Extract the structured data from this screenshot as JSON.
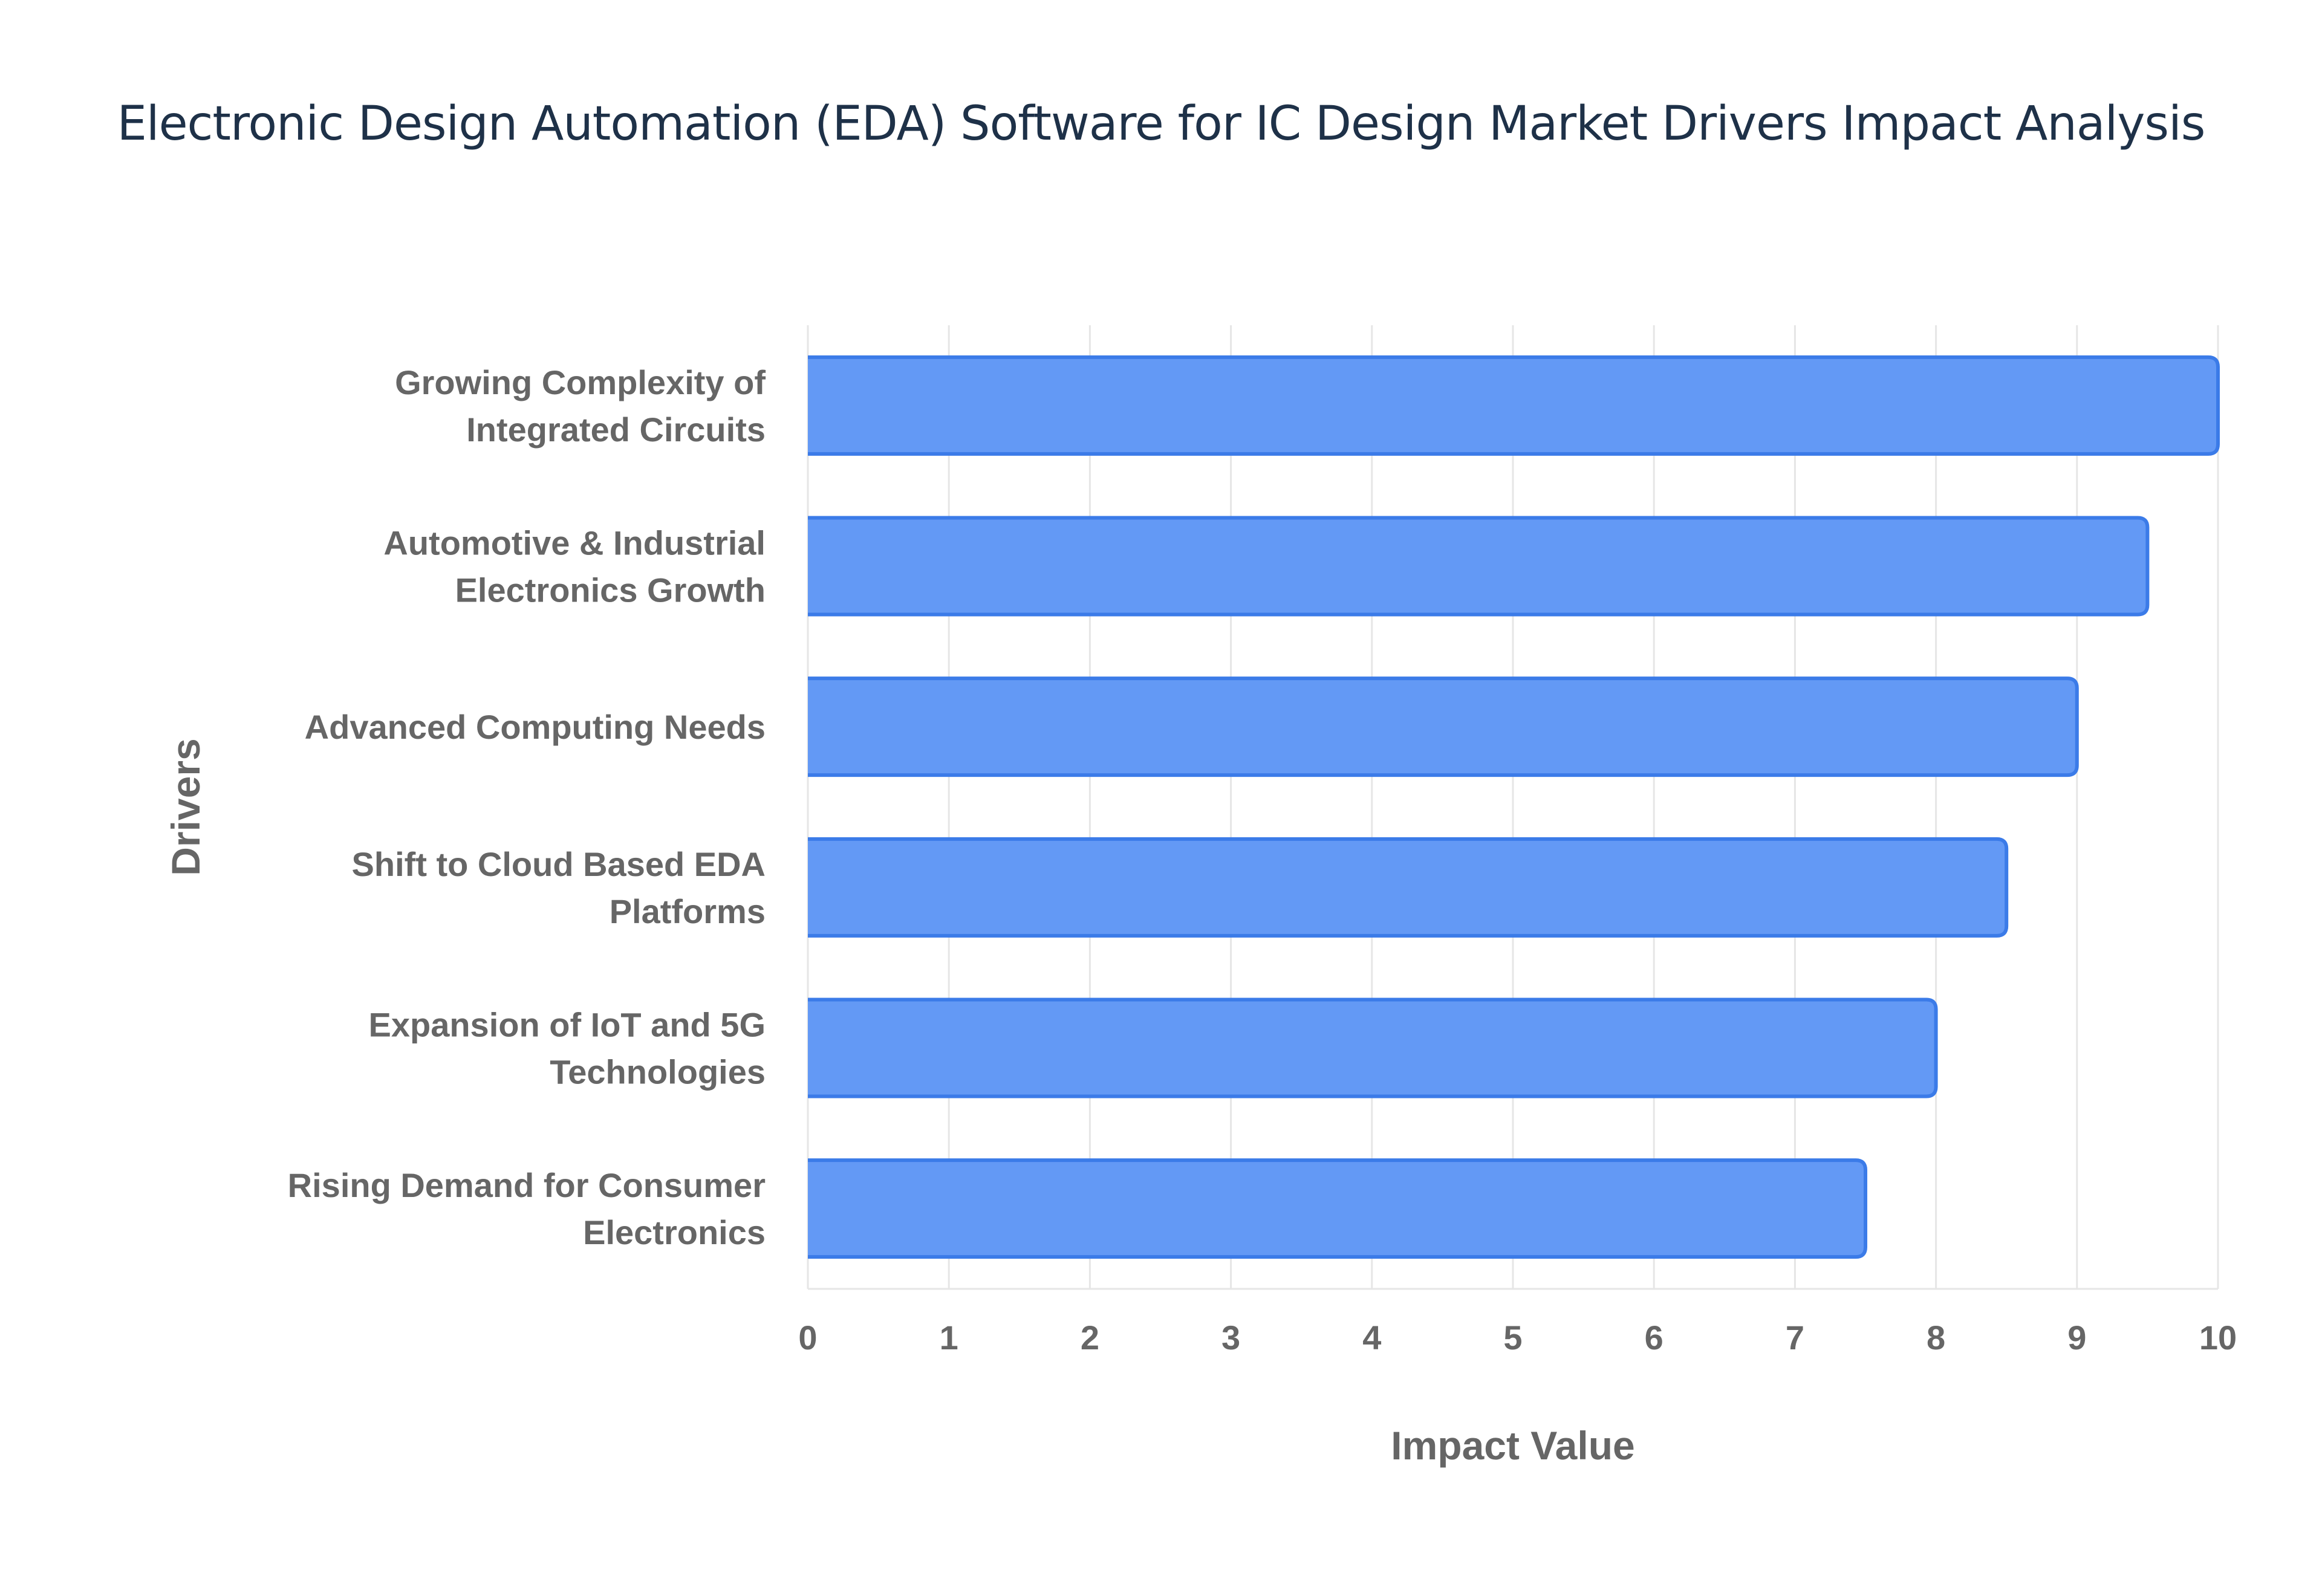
{
  "title": "Electronic Design Automation (EDA) Software for IC Design Market Drivers Impact Analysis",
  "chart_data": {
    "type": "bar",
    "orientation": "horizontal",
    "categories": [
      [
        "Growing Complexity of",
        "Integrated Circuits"
      ],
      [
        "Automotive & Industrial",
        "Electronics Growth"
      ],
      [
        "Advanced Computing Needs"
      ],
      [
        "Shift to Cloud Based EDA",
        "Platforms"
      ],
      [
        "Expansion of IoT and 5G",
        "Technologies"
      ],
      [
        "Rising Demand for Consumer",
        "Electronics"
      ]
    ],
    "values": [
      10,
      9.5,
      9,
      8.5,
      8,
      7.5
    ],
    "xlabel": "Impact Value",
    "ylabel": "Drivers",
    "xlim": [
      0,
      10
    ],
    "xticks": [
      "0",
      "1",
      "2",
      "3",
      "4",
      "5",
      "6",
      "7",
      "8",
      "9",
      "10"
    ],
    "grid": true,
    "colors": {
      "bar_fill": "#6399f5",
      "bar_stroke": "#3b7be8",
      "grid": "#e6e6e6",
      "text": "#666666",
      "title": "#1e3148"
    }
  }
}
